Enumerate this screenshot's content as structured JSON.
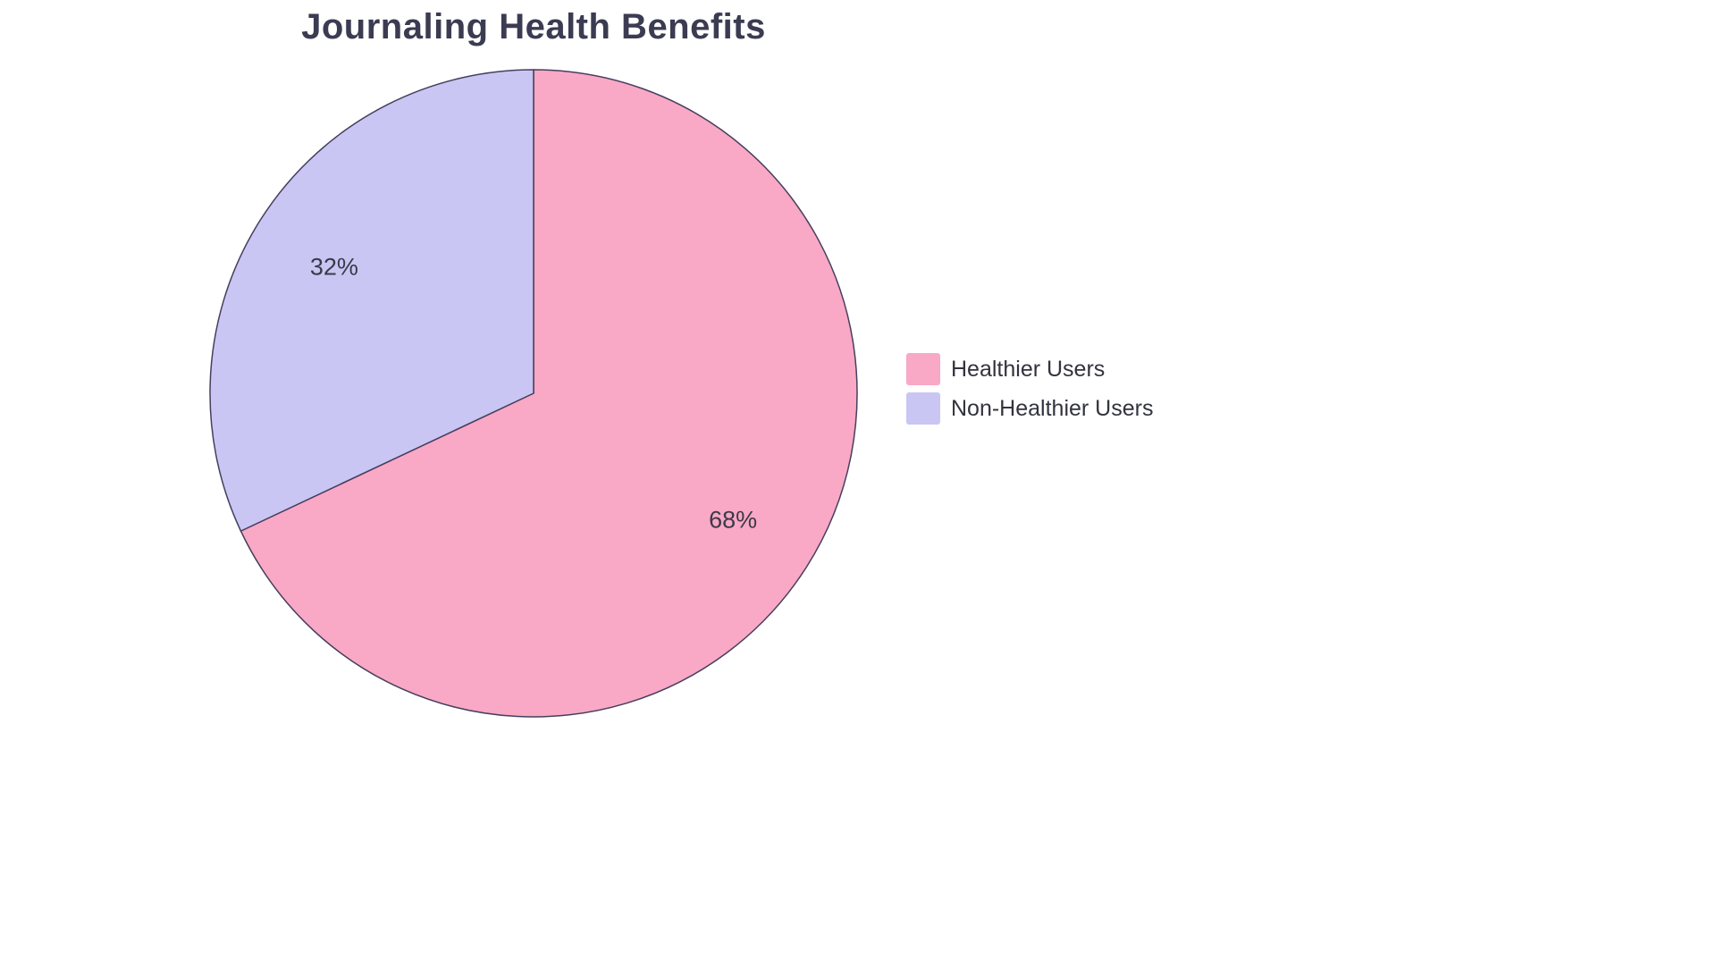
{
  "chart_data": {
    "type": "pie",
    "title": "Journaling Health Benefits",
    "labels": [
      "Healthier Users",
      "Non-Healthier Users"
    ],
    "values": [
      68,
      32
    ],
    "percent_labels": [
      "68%",
      "32%"
    ],
    "colors": [
      "#F9A8C6",
      "#C9C6F4"
    ],
    "stroke_color": "#453F5E",
    "text_color": "#3A3A48",
    "title_color": "#3B3B52",
    "legend_position": "right",
    "start_angle": "top",
    "direction": "clockwise",
    "background": "#FFFFFF"
  }
}
